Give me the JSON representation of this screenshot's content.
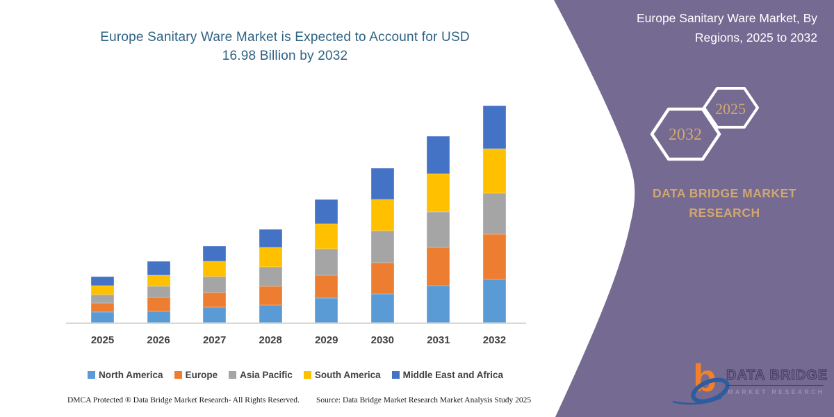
{
  "chart": {
    "title": "Europe Sanitary Ware Market is Expected to Account for USD 16.98 Billion by 2032",
    "footer_left": "DMCA Protected ® Data Bridge Market Research-  All Rights Reserved.",
    "footer_right": "Source: Data Bridge Market Research  Market Analysis Study 2025"
  },
  "chart_data": {
    "type": "bar",
    "stacked": true,
    "unit": "USD Billion",
    "title": "Europe Sanitary Ware Market is Expected to Account for USD 16.98 Billion by 2032",
    "categories": [
      "2025",
      "2026",
      "2027",
      "2028",
      "2029",
      "2030",
      "2031",
      "2032"
    ],
    "series": [
      {
        "name": "North America",
        "color": "#5B9BD5",
        "values": [
          0.87,
          0.91,
          1.23,
          1.41,
          1.94,
          2.26,
          2.95,
          3.44
        ]
      },
      {
        "name": "Europe",
        "color": "#ED7D31",
        "values": [
          0.72,
          1.09,
          1.16,
          1.45,
          1.81,
          2.48,
          2.99,
          3.49
        ]
      },
      {
        "name": "Asia Pacific",
        "color": "#A5A5A5",
        "values": [
          0.64,
          0.89,
          1.23,
          1.54,
          2.05,
          2.5,
          2.75,
          3.2
        ]
      },
      {
        "name": "South America",
        "color": "#FFC000",
        "values": [
          0.71,
          0.84,
          1.21,
          1.54,
          1.94,
          2.44,
          2.95,
          3.49
        ]
      },
      {
        "name": "Middle East and Africa",
        "color": "#4472C4",
        "values": [
          0.69,
          1.1,
          1.18,
          1.4,
          1.9,
          2.41,
          2.93,
          3.36
        ]
      }
    ],
    "totals": [
      3.63,
      4.83,
      6.01,
      7.34,
      9.64,
      12.09,
      14.57,
      16.98
    ],
    "ylim": [
      0,
      16.98
    ],
    "gridlines": false,
    "y_axis_visible": false,
    "legend_position": "bottom"
  },
  "panel": {
    "background_color": "#746A92",
    "accent_text_color": "#D2A76F",
    "title_line1": "Europe Sanitary Ware Market, By",
    "title_line2": "Regions, 2025 to 2032",
    "hexagon_left_label": "2032",
    "hexagon_right_label": "2025",
    "brand_line1": "DATA BRIDGE MARKET",
    "brand_line2": "RESEARCH"
  },
  "logo": {
    "mark_letter": "b",
    "wordmark": "DATA BRIDGE",
    "tagline": "MARKET RESEARCH",
    "orange": "#F0812A",
    "blue": "#2E5C9E"
  }
}
